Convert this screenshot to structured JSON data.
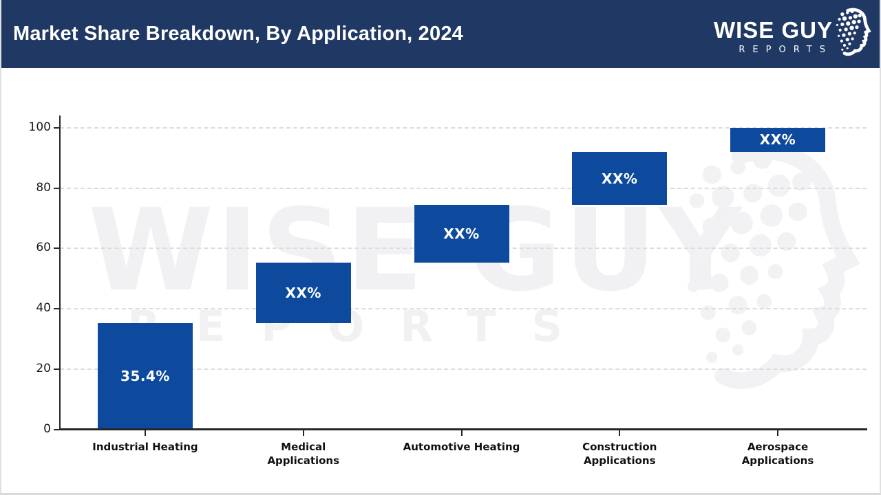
{
  "header": {
    "title": "Market Share Breakdown, By Application, 2024",
    "logo": {
      "line1": "WISE GUY",
      "line2": "REPORTS"
    }
  },
  "watermark": {
    "line1": "WISE GUY",
    "line2": "REPORTS"
  },
  "chart_data": {
    "type": "bar",
    "subtype": "waterfall",
    "title": "Market Share Breakdown, By Application, 2024",
    "categories": [
      "Industrial Heating",
      "Medical Applications",
      "Automotive Heating",
      "Construction Applications",
      "Aerospace Applications"
    ],
    "category_lines": [
      [
        "Industrial Heating"
      ],
      [
        "Medical",
        "Applications"
      ],
      [
        "Automotive Heating"
      ],
      [
        "Construction",
        "Applications"
      ],
      [
        "Aerospace",
        "Applications"
      ]
    ],
    "segments": [
      {
        "category": "Industrial Heating",
        "start": 0,
        "end": 35.4,
        "label": "35.4%"
      },
      {
        "category": "Medical Applications",
        "start": 35.4,
        "end": 55.4,
        "label": "XX%"
      },
      {
        "category": "Automotive Heating",
        "start": 55.4,
        "end": 74.4,
        "label": "XX%"
      },
      {
        "category": "Construction Applications",
        "start": 74.4,
        "end": 92.0,
        "label": "XX%"
      },
      {
        "category": "Aerospace Applications",
        "start": 92.0,
        "end": 100,
        "label": "XX%"
      }
    ],
    "yticks": [
      0,
      20,
      40,
      60,
      80,
      100
    ],
    "ylim": [
      0,
      100
    ],
    "xlabel": "",
    "ylabel": "",
    "grid": "horizontal-dashed",
    "legend": "none",
    "bar_color": "#0d4a9e",
    "value_label_color": "#ffffff",
    "header_color": "#1f3864"
  }
}
